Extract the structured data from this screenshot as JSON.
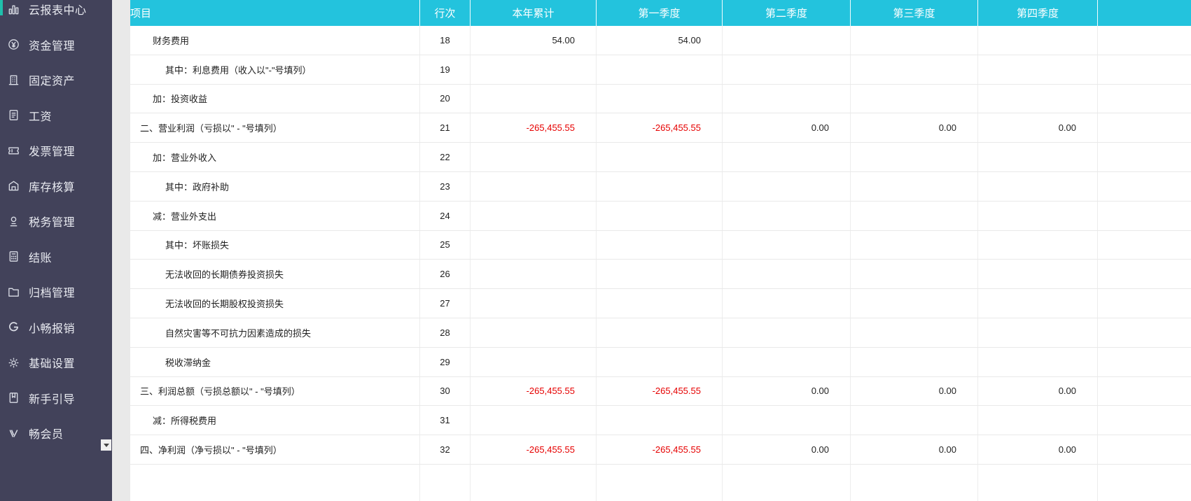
{
  "colors": {
    "sidebar_bg": "#42425a",
    "header_bg": "#23c3dd",
    "negative": "#e60000",
    "accent": "#1fc0ac",
    "gutter": "#e9e9e9"
  },
  "sidebar": {
    "items": [
      {
        "label": "云报表中心",
        "icon": "cloud-report"
      },
      {
        "label": "资金管理",
        "icon": "funds"
      },
      {
        "label": "固定资产",
        "icon": "fixed-assets"
      },
      {
        "label": "工资",
        "icon": "salary"
      },
      {
        "label": "发票管理",
        "icon": "invoice"
      },
      {
        "label": "库存核算",
        "icon": "inventory"
      },
      {
        "label": "税务管理",
        "icon": "tax"
      },
      {
        "label": "结账",
        "icon": "closing"
      },
      {
        "label": "归档管理",
        "icon": "archive"
      },
      {
        "label": "小畅报销",
        "icon": "xiaochang"
      },
      {
        "label": "基础设置",
        "icon": "settings"
      },
      {
        "label": "新手引导",
        "icon": "guide"
      },
      {
        "label": "畅会员",
        "icon": "member"
      }
    ]
  },
  "table": {
    "columns": [
      "项目",
      "行次",
      "本年累计",
      "第一季度",
      "第二季度",
      "第三季度",
      "第四季度"
    ],
    "rows": [
      {
        "item": "财务费用",
        "indent": 1,
        "line": "18",
        "values": [
          "54.00",
          "54.00",
          "",
          "",
          ""
        ]
      },
      {
        "item": "其中：利息费用（收入以\"-\"号填列）",
        "indent": 2,
        "line": "19",
        "values": [
          "",
          "",
          "",
          "",
          ""
        ]
      },
      {
        "item": "加：投资收益",
        "indent": 1,
        "line": "20",
        "values": [
          "",
          "",
          "",
          "",
          ""
        ]
      },
      {
        "item": "二、营业利润（亏损以\" - \"号填列）",
        "indent": 0,
        "line": "21",
        "values": [
          "-265,455.55",
          "-265,455.55",
          "0.00",
          "0.00",
          "0.00"
        ]
      },
      {
        "item": "加：营业外收入",
        "indent": 1,
        "line": "22",
        "values": [
          "",
          "",
          "",
          "",
          ""
        ]
      },
      {
        "item": "其中：政府补助",
        "indent": 2,
        "line": "23",
        "values": [
          "",
          "",
          "",
          "",
          ""
        ]
      },
      {
        "item": "减：营业外支出",
        "indent": 1,
        "line": "24",
        "values": [
          "",
          "",
          "",
          "",
          ""
        ]
      },
      {
        "item": "其中：坏账损失",
        "indent": 2,
        "line": "25",
        "values": [
          "",
          "",
          "",
          "",
          ""
        ]
      },
      {
        "item": "无法收回的长期债券投资损失",
        "indent": 2,
        "line": "26",
        "values": [
          "",
          "",
          "",
          "",
          ""
        ]
      },
      {
        "item": "无法收回的长期股权投资损失",
        "indent": 2,
        "line": "27",
        "values": [
          "",
          "",
          "",
          "",
          ""
        ]
      },
      {
        "item": "自然灾害等不可抗力因素造成的损失",
        "indent": 2,
        "line": "28",
        "values": [
          "",
          "",
          "",
          "",
          ""
        ]
      },
      {
        "item": "税收滞纳金",
        "indent": 2,
        "line": "29",
        "values": [
          "",
          "",
          "",
          "",
          ""
        ]
      },
      {
        "item": "三、利润总额（亏损总额以\" - \"号填列）",
        "indent": 0,
        "line": "30",
        "values": [
          "-265,455.55",
          "-265,455.55",
          "0.00",
          "0.00",
          "0.00"
        ]
      },
      {
        "item": "减：所得税费用",
        "indent": 1,
        "line": "31",
        "values": [
          "",
          "",
          "",
          "",
          ""
        ]
      },
      {
        "item": "四、净利润（净亏损以\" - \"号填列）",
        "indent": 0,
        "line": "32",
        "values": [
          "-265,455.55",
          "-265,455.55",
          "0.00",
          "0.00",
          "0.00"
        ]
      }
    ]
  }
}
